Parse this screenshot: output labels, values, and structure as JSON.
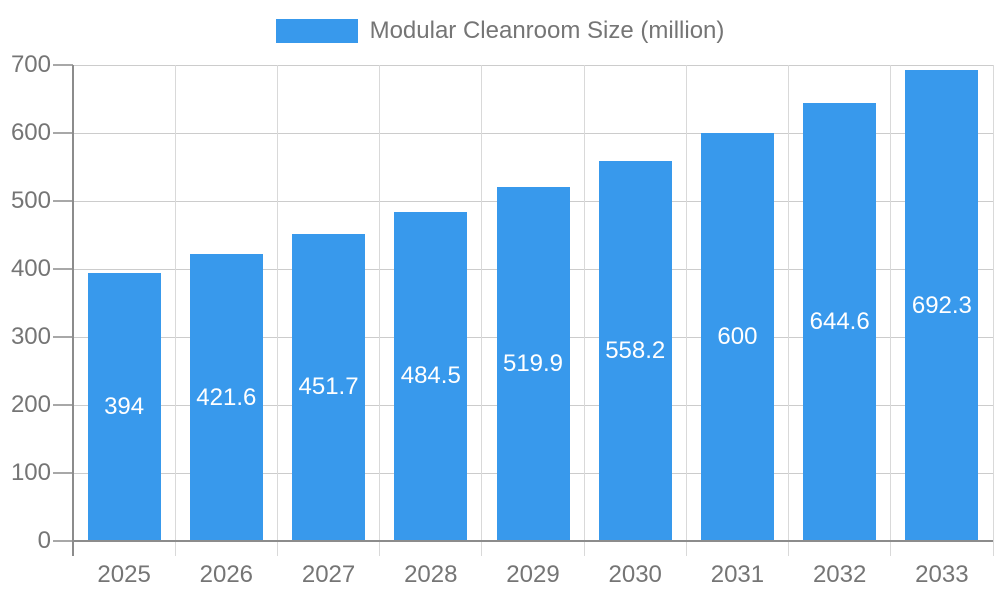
{
  "colors": {
    "bar": "#3899ec",
    "axis": "#8c8c8c",
    "tick": "#a8a8a8",
    "grid_h": "#cccccc",
    "grid_v": "#d9d9d9",
    "text": "#757575",
    "value_label": "#ffffff",
    "background": "#ffffff"
  },
  "chart_data": {
    "type": "bar",
    "title": "",
    "legend": "Modular Cleanroom Size (million)",
    "legend_position": "top",
    "categories": [
      "2025",
      "2026",
      "2027",
      "2028",
      "2029",
      "2030",
      "2031",
      "2032",
      "2033"
    ],
    "values": [
      394,
      421.6,
      451.7,
      484.5,
      519.9,
      558.2,
      600,
      644.6,
      692.3
    ],
    "value_labels": [
      "394",
      "421.6",
      "451.7",
      "484.5",
      "519.9",
      "558.2",
      "600",
      "644.6",
      "692.3"
    ],
    "value_label_position": "inside-center",
    "xlabel": "",
    "ylabel": "",
    "ylim": [
      0,
      700
    ],
    "yticks": [
      0,
      100,
      200,
      300,
      400,
      500,
      600,
      700
    ],
    "grid": true
  }
}
